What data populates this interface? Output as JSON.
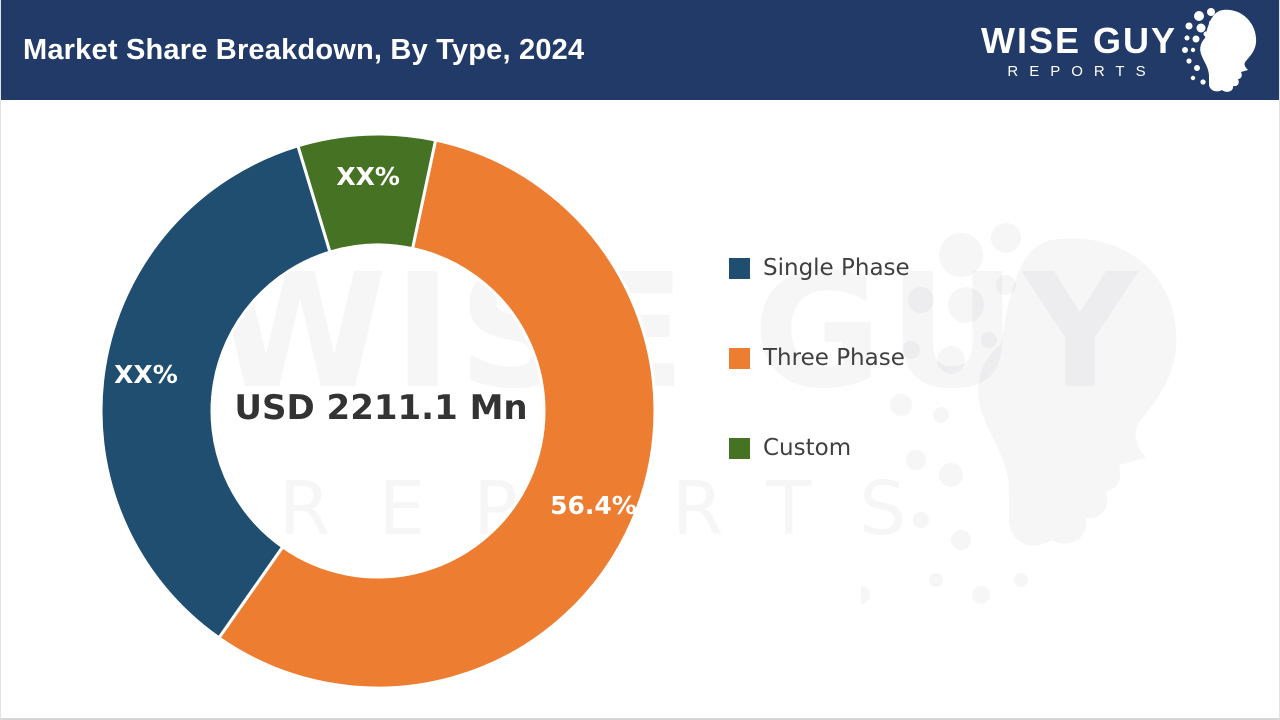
{
  "header": {
    "title": "Market Share Breakdown, By Type, 2024",
    "bg_color": "#223A67",
    "logo": {
      "line1": "WISE GUY",
      "line2": "REPORTS"
    }
  },
  "watermark": {
    "line1": "WISE GUY",
    "line2": "REPORTS"
  },
  "chart_data": {
    "type": "pie",
    "donut": true,
    "title": "Market Share Breakdown, By Type, 2024",
    "center_text": "USD 2211.1 Mn",
    "legend_position": "right",
    "segments": [
      {
        "label": "Single Phase",
        "share_label": "XX%",
        "value_pct": 35.6,
        "color": "#1F4E70"
      },
      {
        "label": "Three Phase",
        "share_label": "56.4%",
        "value_pct": 56.4,
        "color": "#ED7D31"
      },
      {
        "label": "Custom",
        "share_label": "XX%",
        "value_pct": 8.0,
        "color": "#457323"
      }
    ],
    "draw_order": [
      1,
      0,
      2
    ],
    "start_angle_deg": 12
  }
}
